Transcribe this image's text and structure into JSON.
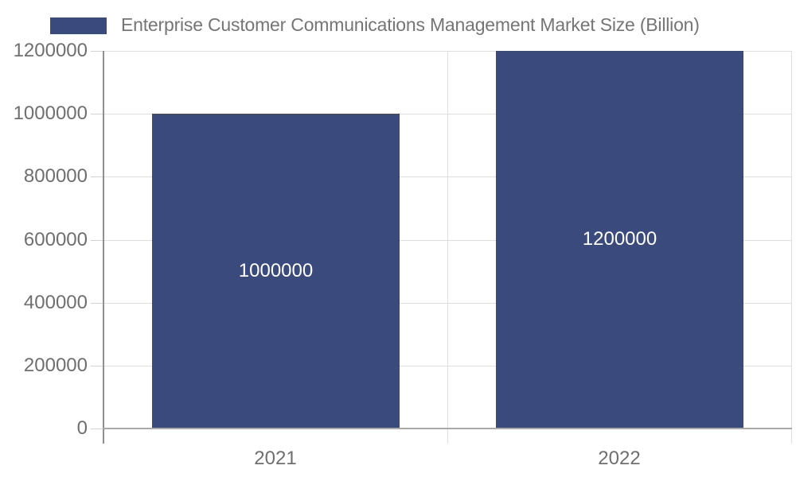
{
  "header": {
    "legend_label": "Enterprise Customer Communications Management Market Size (Billion)"
  },
  "chart_data": {
    "type": "bar",
    "title": "Enterprise Customer Communications Management Market Size (Billion)",
    "categories": [
      "2021",
      "2022"
    ],
    "series": [
      {
        "name": "Enterprise Customer Communications Management Market Size (Billion)",
        "values": [
          1000000,
          1200000
        ]
      }
    ],
    "value_labels": [
      "1000000",
      "1200000"
    ],
    "ylim": [
      0,
      1200000
    ],
    "yticks": [
      0,
      200000,
      400000,
      600000,
      800000,
      1000000,
      1200000
    ],
    "ytick_labels": [
      "0",
      "200000",
      "400000",
      "600000",
      "800000",
      "1000000",
      "1200000"
    ],
    "xlabel": "",
    "ylabel": "",
    "grid": true,
    "legend_position": "top-left",
    "colors": {
      "bar": "#3a4a7c",
      "value_label_text": "#ffffff",
      "title_text": "#757575",
      "axis_text": "#6f6f6f",
      "grid_line": "#dedede",
      "tick_line": "#d2d2d2",
      "y_axis_line": "#8f8f8f",
      "baseline": "#a9a9a9",
      "background": "#ffffff"
    }
  }
}
